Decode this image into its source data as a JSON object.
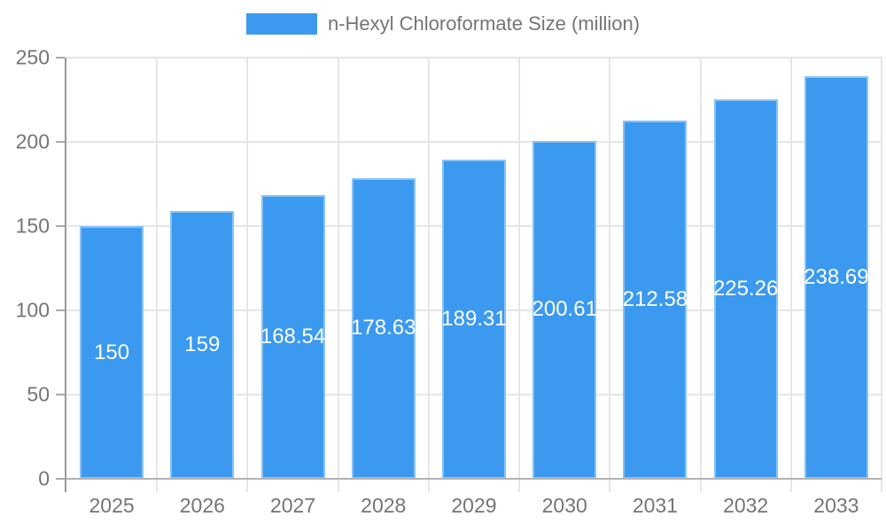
{
  "legend": {
    "label": "n-Hexyl Chloroformate Size (million)"
  },
  "colors": {
    "bar_fill": "#3B99F0",
    "bar_border": "rgba(255,255,255,0.4)",
    "bar_value_text": "#FFFFFF",
    "axis_text": "#757575",
    "grid_line": "#E6E6E6",
    "y_axis_line": "#999999",
    "x_baseline": "#B3B3B3",
    "y_tick": "#AAAAAA"
  },
  "chart_data": {
    "type": "bar",
    "title": "",
    "categories": [
      "2025",
      "2026",
      "2027",
      "2028",
      "2029",
      "2030",
      "2031",
      "2032",
      "2033"
    ],
    "series": [
      {
        "name": "n-Hexyl Chloroformate Size (million)",
        "values": [
          150,
          159,
          168.54,
          178.63,
          189.31,
          200.61,
          212.58,
          225.26,
          238.69
        ]
      }
    ],
    "data_labels": [
      "150",
      "159",
      "168.54",
      "178.63",
      "189.31",
      "200.61",
      "212.58",
      "225.26",
      "238.69"
    ],
    "xlabel": "",
    "ylabel": "",
    "ylim": [
      0,
      250
    ],
    "yticks": [
      0,
      50,
      100,
      150,
      200,
      250
    ],
    "grid": true,
    "legend_position": "top",
    "bar_labels_inside_centered": true
  }
}
